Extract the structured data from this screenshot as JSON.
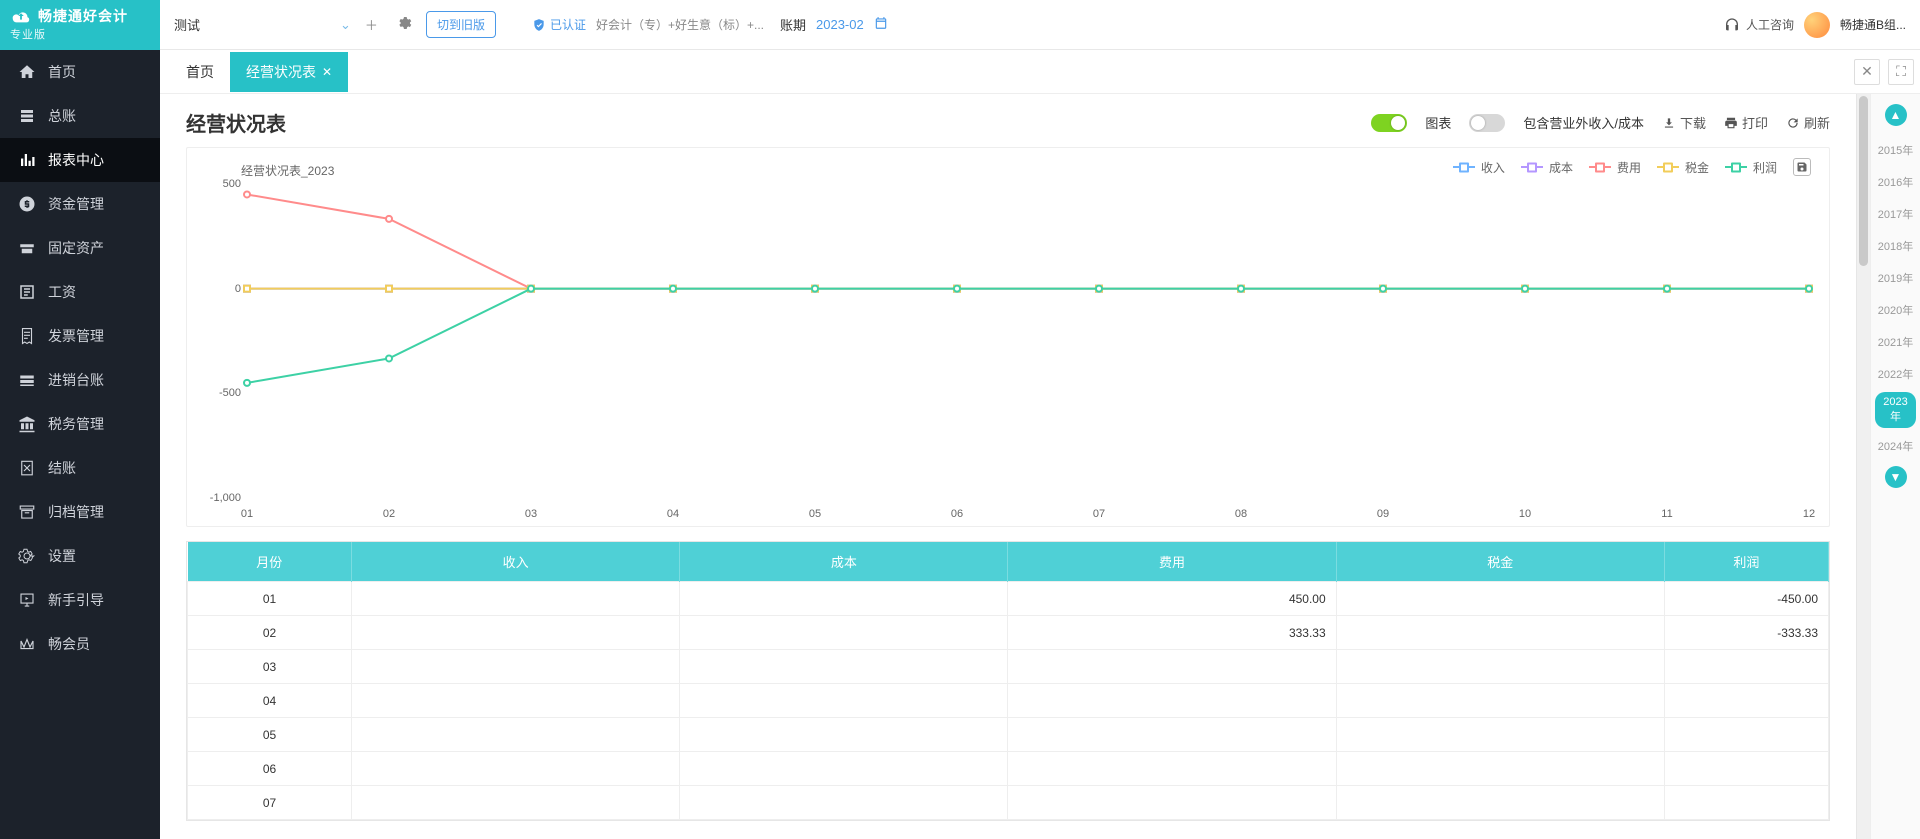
{
  "colors": {
    "primary": "#27c1c7",
    "sidebar_bg": "#1c222b",
    "table_header": "#4fd0d6",
    "link": "#4a99e9",
    "toggle_on": "#7ed321"
  },
  "brand": {
    "name": "畅捷通好会计",
    "edition": "专业版"
  },
  "sidebar": {
    "items": [
      {
        "label": "首页",
        "icon": "home"
      },
      {
        "label": "总账",
        "icon": "ledger"
      },
      {
        "label": "报表中心",
        "icon": "report",
        "active": true
      },
      {
        "label": "资金管理",
        "icon": "funds"
      },
      {
        "label": "固定资产",
        "icon": "asset"
      },
      {
        "label": "工资",
        "icon": "salary"
      },
      {
        "label": "发票管理",
        "icon": "invoice"
      },
      {
        "label": "进销台账",
        "icon": "stock"
      },
      {
        "label": "税务管理",
        "icon": "tax"
      },
      {
        "label": "结账",
        "icon": "close"
      },
      {
        "label": "归档管理",
        "icon": "archive"
      },
      {
        "label": "设置",
        "icon": "settings"
      },
      {
        "label": "新手引导",
        "icon": "guide"
      },
      {
        "label": "畅会员",
        "icon": "vip"
      }
    ]
  },
  "topbar": {
    "org": "测试",
    "switch_old": "切到旧版",
    "certified": "已认证",
    "plan": "好会计（专）+好生意（标）+...",
    "period_label": "账期",
    "period_value": "2023-02",
    "support": "人工咨询",
    "user": "畅捷通B组..."
  },
  "tabs": [
    {
      "label": "首页",
      "closable": false,
      "active": false
    },
    {
      "label": "经营状况表",
      "closable": true,
      "active": true
    }
  ],
  "page": {
    "title": "经营状况表",
    "chart_toggle_label": "图表",
    "include_toggle_label": "包含营业外收入/成本",
    "actions": {
      "download": "下载",
      "print": "打印",
      "refresh": "刷新"
    }
  },
  "chart": {
    "title": "经营状况表_2023",
    "type": "line",
    "y": {
      "min": -1000,
      "max": 500,
      "ticks": [
        500,
        0,
        -500,
        -1000
      ]
    },
    "x_categories": [
      "01",
      "02",
      "03",
      "04",
      "05",
      "06",
      "07",
      "08",
      "09",
      "10",
      "11",
      "12"
    ],
    "legend": [
      {
        "key": "income",
        "label": "收入",
        "color": "#6fb3ff",
        "marker": "square"
      },
      {
        "key": "cost",
        "label": "成本",
        "color": "#b497ff",
        "marker": "square"
      },
      {
        "key": "expense",
        "label": "费用",
        "color": "#ff8b8b",
        "marker": "circle"
      },
      {
        "key": "tax",
        "label": "税金",
        "color": "#f2cd5a",
        "marker": "square"
      },
      {
        "key": "profit",
        "label": "利润",
        "color": "#3dd1a5",
        "marker": "circle"
      }
    ],
    "series": {
      "income": [
        0,
        0,
        0,
        0,
        0,
        0,
        0,
        0,
        0,
        0,
        0,
        0
      ],
      "cost": [
        0,
        0,
        0,
        0,
        0,
        0,
        0,
        0,
        0,
        0,
        0,
        0
      ],
      "expense": [
        450,
        333.33,
        0,
        0,
        0,
        0,
        0,
        0,
        0,
        0,
        0,
        0
      ],
      "tax": [
        0,
        0,
        0,
        0,
        0,
        0,
        0,
        0,
        0,
        0,
        0,
        0
      ],
      "profit": [
        -450,
        -333.33,
        0,
        0,
        0,
        0,
        0,
        0,
        0,
        0,
        0,
        0
      ]
    }
  },
  "table": {
    "columns": [
      "月份",
      "收入",
      "成本",
      "费用",
      "税金",
      "利润"
    ],
    "col_widths_pct": [
      9,
      18,
      18,
      18,
      18,
      9
    ],
    "rows": [
      {
        "month": "01",
        "income": "",
        "cost": "",
        "expense": "450.00",
        "tax": "",
        "profit": "-450.00"
      },
      {
        "month": "02",
        "income": "",
        "cost": "",
        "expense": "333.33",
        "tax": "",
        "profit": "-333.33"
      },
      {
        "month": "03",
        "income": "",
        "cost": "",
        "expense": "",
        "tax": "",
        "profit": ""
      },
      {
        "month": "04",
        "income": "",
        "cost": "",
        "expense": "",
        "tax": "",
        "profit": ""
      },
      {
        "month": "05",
        "income": "",
        "cost": "",
        "expense": "",
        "tax": "",
        "profit": ""
      },
      {
        "month": "06",
        "income": "",
        "cost": "",
        "expense": "",
        "tax": "",
        "profit": ""
      },
      {
        "month": "07",
        "income": "",
        "cost": "",
        "expense": "",
        "tax": "",
        "profit": ""
      }
    ]
  },
  "year_rail": {
    "years": [
      "2015年",
      "2016年",
      "2017年",
      "2018年",
      "2019年",
      "2020年",
      "2021年",
      "2022年",
      "2023年",
      "2024年"
    ],
    "active": "2023年"
  }
}
